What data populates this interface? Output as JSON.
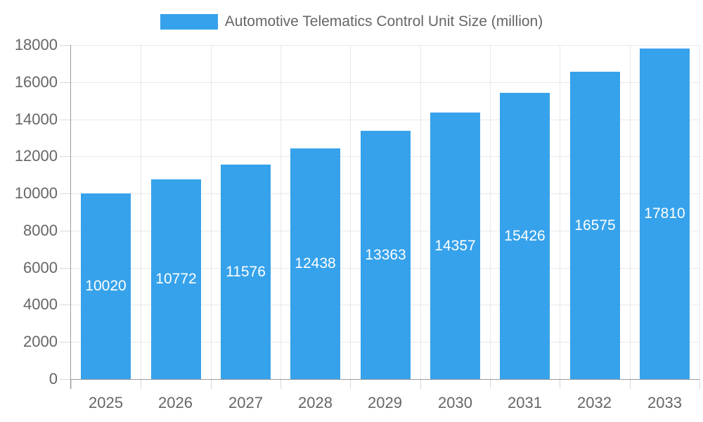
{
  "legend": {
    "label": "Automotive Telematics Control Unit Size (million)"
  },
  "chart_data": {
    "type": "bar",
    "title": "Automotive Telematics Control Unit Size (million)",
    "legend_position": "top",
    "categories": [
      "2025",
      "2026",
      "2027",
      "2028",
      "2029",
      "2030",
      "2031",
      "2032",
      "2033"
    ],
    "series": [
      {
        "name": "Automotive Telematics Control Unit Size (million)",
        "values": [
          10020,
          10772,
          11576,
          12438,
          13363,
          14357,
          15426,
          16575,
          17810
        ]
      }
    ],
    "bar_labels_shown": true,
    "xlabel": "",
    "ylabel": "",
    "ylim": [
      0,
      18000
    ],
    "ytick_step": 2000,
    "yticks": [
      0,
      2000,
      4000,
      6000,
      8000,
      10000,
      12000,
      14000,
      16000,
      18000
    ],
    "grid": true,
    "colors": {
      "bar": "#36A2EB",
      "bar_label": "#FFFFFF",
      "axis_text": "#666666",
      "grid_line": "#E8E8E8",
      "tick_line": "#D8D8D8",
      "axis_line": "#999999",
      "background": "#FFFFFF"
    }
  }
}
